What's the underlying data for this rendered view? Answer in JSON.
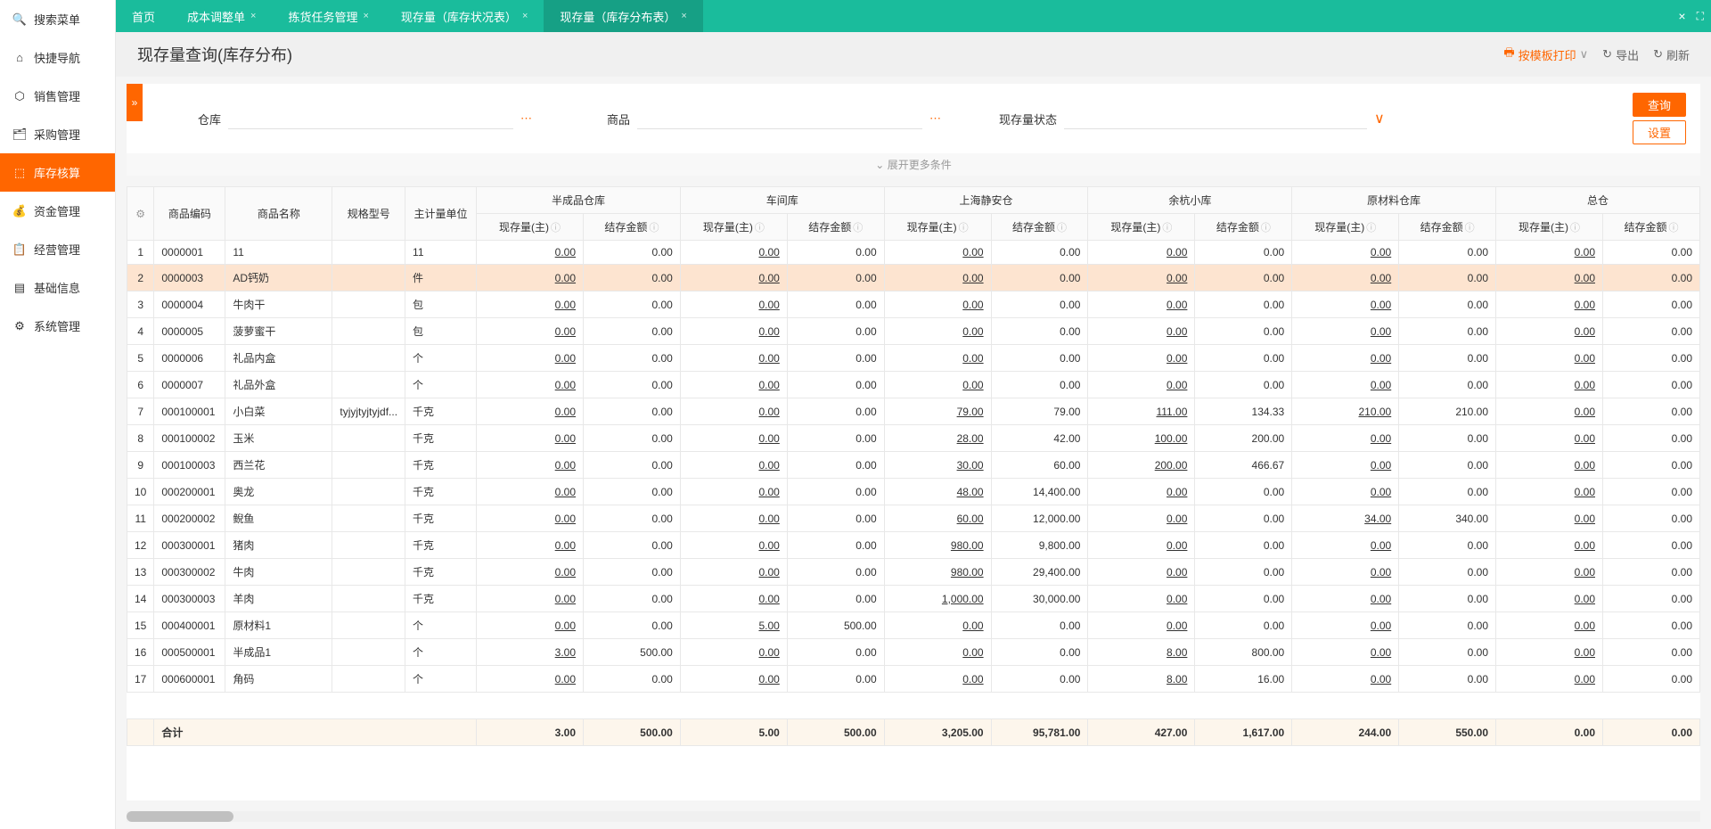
{
  "sidebar": {
    "items": [
      {
        "label": "搜索菜单",
        "icon": "search"
      },
      {
        "label": "快捷导航",
        "icon": "home"
      },
      {
        "label": "销售管理",
        "icon": "badge"
      },
      {
        "label": "采购管理",
        "icon": "briefcase"
      },
      {
        "label": "库存核算",
        "icon": "box",
        "active": true
      },
      {
        "label": "资金管理",
        "icon": "money"
      },
      {
        "label": "经营管理",
        "icon": "clipboard"
      },
      {
        "label": "基础信息",
        "icon": "layers"
      },
      {
        "label": "系统管理",
        "icon": "gear-dashed"
      }
    ]
  },
  "tabs": [
    {
      "label": "首页",
      "closable": false
    },
    {
      "label": "成本调整单",
      "closable": true
    },
    {
      "label": "拣货任务管理",
      "closable": true
    },
    {
      "label": "现存量（库存状况表）",
      "closable": true
    },
    {
      "label": "现存量（库存分布表）",
      "closable": true,
      "active": true
    }
  ],
  "page": {
    "title": "现存量查询(库存分布)",
    "actions": {
      "print": "按模板打印",
      "export": "导出",
      "refresh": "刷新"
    }
  },
  "filter": {
    "warehouse_label": "仓库",
    "product_label": "商品",
    "status_label": "现存量状态",
    "query_btn": "查询",
    "settings_btn": "设置",
    "expand_text": "展开更多条件"
  },
  "table": {
    "columns": {
      "idx": "",
      "code": "商品编码",
      "name": "商品名称",
      "spec": "规格型号",
      "unit": "主计量单位",
      "groups": [
        {
          "label": "半成品仓库",
          "sub": [
            "现存量(主)",
            "结存金额"
          ]
        },
        {
          "label": "车间库",
          "sub": [
            "现存量(主)",
            "结存金额"
          ]
        },
        {
          "label": "上海静安仓",
          "sub": [
            "现存量(主)",
            "结存金额"
          ]
        },
        {
          "label": "余杭小库",
          "sub": [
            "现存量(主)",
            "结存金额"
          ]
        },
        {
          "label": "原材料仓库",
          "sub": [
            "现存量(主)",
            "结存金额"
          ]
        },
        {
          "label": "总仓",
          "sub": [
            "现存量(主)",
            "结存金额"
          ]
        }
      ]
    },
    "rows": [
      {
        "idx": 1,
        "code": "0000001",
        "name": "11",
        "spec": "",
        "unit": "11",
        "v": [
          "0.00",
          "0.00",
          "0.00",
          "0.00",
          "0.00",
          "0.00",
          "0.00",
          "0.00",
          "0.00",
          "0.00",
          "0.00",
          "0.00"
        ]
      },
      {
        "idx": 2,
        "code": "0000003",
        "name": "AD钙奶",
        "spec": "",
        "unit": "件",
        "v": [
          "0.00",
          "0.00",
          "0.00",
          "0.00",
          "0.00",
          "0.00",
          "0.00",
          "0.00",
          "0.00",
          "0.00",
          "0.00",
          "0.00"
        ],
        "hl": true
      },
      {
        "idx": 3,
        "code": "0000004",
        "name": "牛肉干",
        "spec": "",
        "unit": "包",
        "v": [
          "0.00",
          "0.00",
          "0.00",
          "0.00",
          "0.00",
          "0.00",
          "0.00",
          "0.00",
          "0.00",
          "0.00",
          "0.00",
          "0.00"
        ]
      },
      {
        "idx": 4,
        "code": "0000005",
        "name": "菠萝蜜干",
        "spec": "",
        "unit": "包",
        "v": [
          "0.00",
          "0.00",
          "0.00",
          "0.00",
          "0.00",
          "0.00",
          "0.00",
          "0.00",
          "0.00",
          "0.00",
          "0.00",
          "0.00"
        ]
      },
      {
        "idx": 5,
        "code": "0000006",
        "name": "礼品内盒",
        "spec": "",
        "unit": "个",
        "v": [
          "0.00",
          "0.00",
          "0.00",
          "0.00",
          "0.00",
          "0.00",
          "0.00",
          "0.00",
          "0.00",
          "0.00",
          "0.00",
          "0.00"
        ]
      },
      {
        "idx": 6,
        "code": "0000007",
        "name": "礼品外盒",
        "spec": "",
        "unit": "个",
        "v": [
          "0.00",
          "0.00",
          "0.00",
          "0.00",
          "0.00",
          "0.00",
          "0.00",
          "0.00",
          "0.00",
          "0.00",
          "0.00",
          "0.00"
        ]
      },
      {
        "idx": 7,
        "code": "000100001",
        "name": "小白菜",
        "spec": "tyjyjtyjtyjdf...",
        "unit": "千克",
        "v": [
          "0.00",
          "0.00",
          "0.00",
          "0.00",
          "79.00",
          "79.00",
          "111.00",
          "134.33",
          "210.00",
          "210.00",
          "0.00",
          "0.00"
        ]
      },
      {
        "idx": 8,
        "code": "000100002",
        "name": "玉米",
        "spec": "",
        "unit": "千克",
        "v": [
          "0.00",
          "0.00",
          "0.00",
          "0.00",
          "28.00",
          "42.00",
          "100.00",
          "200.00",
          "0.00",
          "0.00",
          "0.00",
          "0.00"
        ]
      },
      {
        "idx": 9,
        "code": "000100003",
        "name": "西兰花",
        "spec": "",
        "unit": "千克",
        "v": [
          "0.00",
          "0.00",
          "0.00",
          "0.00",
          "30.00",
          "60.00",
          "200.00",
          "466.67",
          "0.00",
          "0.00",
          "0.00",
          "0.00"
        ]
      },
      {
        "idx": 10,
        "code": "000200001",
        "name": "奥龙",
        "spec": "",
        "unit": "千克",
        "v": [
          "0.00",
          "0.00",
          "0.00",
          "0.00",
          "48.00",
          "14,400.00",
          "0.00",
          "0.00",
          "0.00",
          "0.00",
          "0.00",
          "0.00"
        ]
      },
      {
        "idx": 11,
        "code": "000200002",
        "name": "鲵鱼",
        "spec": "",
        "unit": "千克",
        "v": [
          "0.00",
          "0.00",
          "0.00",
          "0.00",
          "60.00",
          "12,000.00",
          "0.00",
          "0.00",
          "34.00",
          "340.00",
          "0.00",
          "0.00"
        ]
      },
      {
        "idx": 12,
        "code": "000300001",
        "name": "猪肉",
        "spec": "",
        "unit": "千克",
        "v": [
          "0.00",
          "0.00",
          "0.00",
          "0.00",
          "980.00",
          "9,800.00",
          "0.00",
          "0.00",
          "0.00",
          "0.00",
          "0.00",
          "0.00"
        ]
      },
      {
        "idx": 13,
        "code": "000300002",
        "name": "牛肉",
        "spec": "",
        "unit": "千克",
        "v": [
          "0.00",
          "0.00",
          "0.00",
          "0.00",
          "980.00",
          "29,400.00",
          "0.00",
          "0.00",
          "0.00",
          "0.00",
          "0.00",
          "0.00"
        ]
      },
      {
        "idx": 14,
        "code": "000300003",
        "name": "羊肉",
        "spec": "",
        "unit": "千克",
        "v": [
          "0.00",
          "0.00",
          "0.00",
          "0.00",
          "1,000.00",
          "30,000.00",
          "0.00",
          "0.00",
          "0.00",
          "0.00",
          "0.00",
          "0.00"
        ]
      },
      {
        "idx": 15,
        "code": "000400001",
        "name": "原材料1",
        "spec": "",
        "unit": "个",
        "v": [
          "0.00",
          "0.00",
          "5.00",
          "500.00",
          "0.00",
          "0.00",
          "0.00",
          "0.00",
          "0.00",
          "0.00",
          "0.00",
          "0.00"
        ]
      },
      {
        "idx": 16,
        "code": "000500001",
        "name": "半成品1",
        "spec": "",
        "unit": "个",
        "v": [
          "3.00",
          "500.00",
          "0.00",
          "0.00",
          "0.00",
          "0.00",
          "8.00",
          "800.00",
          "0.00",
          "0.00",
          "0.00",
          "0.00"
        ]
      },
      {
        "idx": 17,
        "code": "000600001",
        "name": "角码",
        "spec": "",
        "unit": "个",
        "v": [
          "0.00",
          "0.00",
          "0.00",
          "0.00",
          "0.00",
          "0.00",
          "8.00",
          "16.00",
          "0.00",
          "0.00",
          "0.00",
          "0.00"
        ]
      }
    ],
    "totals": {
      "label": "合计",
      "v": [
        "3.00",
        "500.00",
        "5.00",
        "500.00",
        "3,205.00",
        "95,781.00",
        "427.00",
        "1,617.00",
        "244.00",
        "550.00",
        "0.00",
        "0.00"
      ]
    }
  }
}
